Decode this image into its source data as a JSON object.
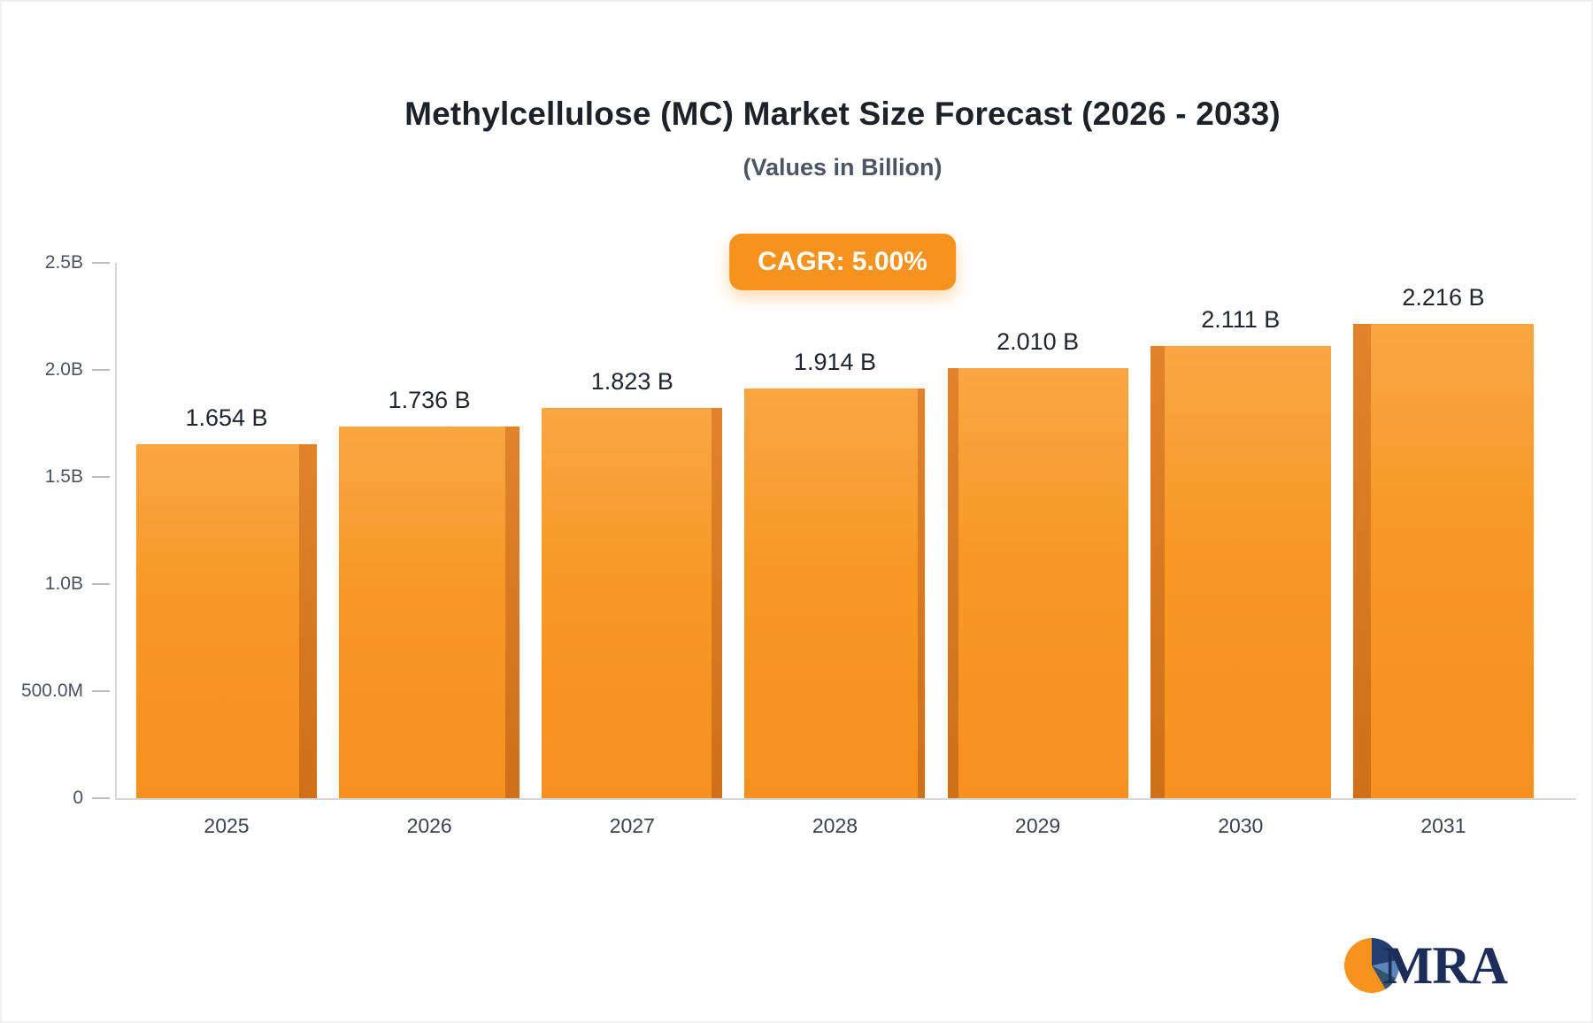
{
  "chart_data": {
    "type": "bar",
    "title": "Methylcellulose (MC) Market Size Forecast (2026 - 2033)",
    "subtitle": "(Values in Billion)",
    "cagr_label": "CAGR: 5.00%",
    "categories": [
      "2025",
      "2026",
      "2027",
      "2028",
      "2029",
      "2030",
      "2031"
    ],
    "values": [
      1.654,
      1.736,
      1.823,
      1.914,
      2.01,
      2.111,
      2.216
    ],
    "value_labels": [
      "1.654 B",
      "1.736 B",
      "1.823 B",
      "1.914 B",
      "2.010 B",
      "2.111 B",
      "2.216 B"
    ],
    "xlabel": "",
    "ylabel": "",
    "ylim": [
      0,
      2.5
    ],
    "yticks": [
      {
        "label": "2.5B",
        "value": 2.5
      },
      {
        "label": "2.0B",
        "value": 2.0
      },
      {
        "label": "1.5B",
        "value": 1.5
      },
      {
        "label": "1.0B",
        "value": 1.0
      },
      {
        "label": "500.0M",
        "value": 0.5
      },
      {
        "label": "0",
        "value": 0
      }
    ],
    "grid": false,
    "legend": false,
    "bar_color": "#F7941E",
    "bar_shadow_color": "#CF7018",
    "background": "#FFFFFF"
  },
  "logo": {
    "text": "MRA"
  },
  "colors": {
    "accent": "#F6921E",
    "badge_bg": "#F6921E",
    "badge_text": "#FFFFFF",
    "title_text": "#1D2128",
    "subtitle_text": "#4B5565",
    "axis_line": "#D5D8DD",
    "logo_navy": "#1C2D5A"
  }
}
